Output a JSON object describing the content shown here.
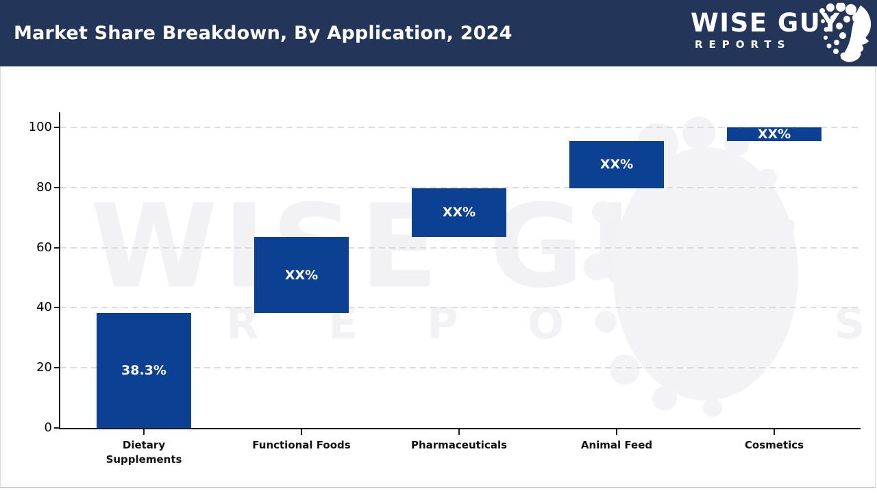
{
  "header": {
    "title": "Market Share Breakdown, By Application, 2024",
    "background_color": "#233659",
    "logo": {
      "line1": "WISE GUY",
      "line2": "R E P O R T S"
    }
  },
  "watermark": {
    "line1": "WISE GUY",
    "line2": "R E P O R T S"
  },
  "chart_data": {
    "type": "bar",
    "subtype": "waterfall",
    "title": "Market Share Breakdown, By Application, 2024",
    "categories": [
      "Dietary\nSupplements",
      "Functional Foods",
      "Pharmaceuticals",
      "Animal Feed",
      "Cosmetics"
    ],
    "segments": [
      {
        "category": "Dietary Supplements",
        "start": 0,
        "end": 38.3,
        "label": "38.3%"
      },
      {
        "category": "Functional Foods",
        "start": 38.3,
        "end": 63.5,
        "label": "XX%"
      },
      {
        "category": "Pharmaceuticals",
        "start": 63.5,
        "end": 79.8,
        "label": "XX%"
      },
      {
        "category": "Animal Feed",
        "start": 79.8,
        "end": 95.5,
        "label": "XX%"
      },
      {
        "category": "Cosmetics",
        "start": 95.5,
        "end": 100,
        "label": "XX%"
      }
    ],
    "yticks": [
      0,
      20,
      40,
      60,
      80,
      100
    ],
    "ylim": [
      0,
      105
    ],
    "xlabel": "",
    "ylabel": "",
    "legend": "none",
    "grid": "horizontal-dashed",
    "bar_color": "#0B4092",
    "bar_label_color": "#ffffff",
    "value_note": "XX% are masked placeholder values; segment start/end estimated from axis"
  }
}
